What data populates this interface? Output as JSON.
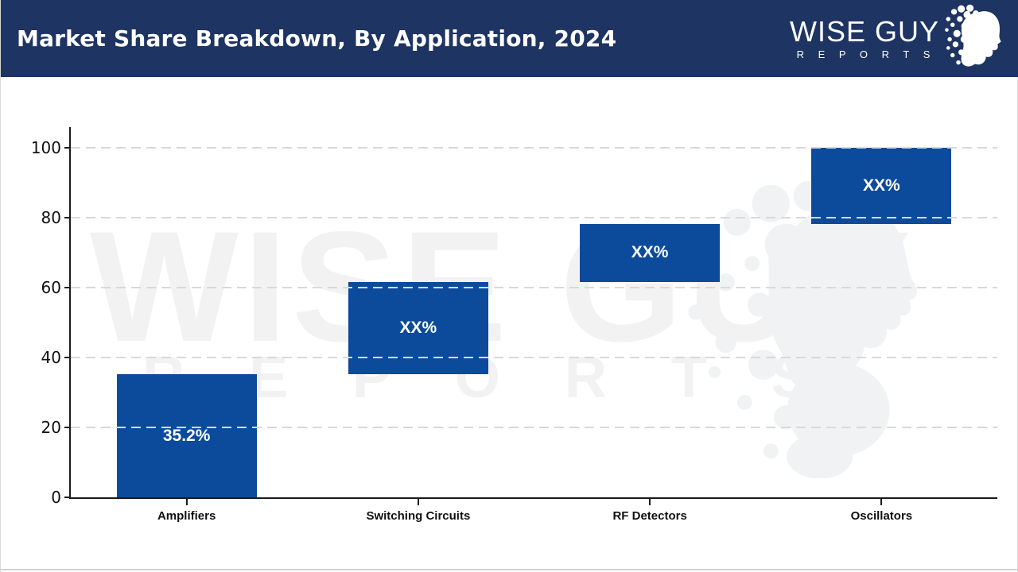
{
  "header": {
    "title": "Market Share Breakdown, By Application, 2024",
    "logo": {
      "name": "WISE GUY",
      "subtitle": "R E P O R T S",
      "head_icon": "dotted-head-profile-icon"
    }
  },
  "watermark": {
    "line1": "WISE GUY",
    "line2": "R E P O R T S",
    "head_icon": "dotted-head-profile-icon"
  },
  "colors": {
    "header_bg": "#1e3462",
    "bar": "#0c4a9c",
    "grid": "#d9d9d9",
    "axis": "#1a1a1a",
    "bar_label_text": "#ffffff",
    "watermark": "#f2f2f2"
  },
  "chart_data": {
    "type": "bar",
    "subtype": "waterfall-floating-bars",
    "title": "Market Share Breakdown, By Application, 2024",
    "categories": [
      "Amplifiers",
      "Switching Circuits",
      "RF Detectors",
      "Oscillators"
    ],
    "segments": [
      {
        "category": "Amplifiers",
        "start": 0,
        "end": 35.2,
        "label": "35.2%"
      },
      {
        "category": "Switching Circuits",
        "start": 35.2,
        "end": 61.7,
        "label": "XX%"
      },
      {
        "category": "RF Detectors",
        "start": 61.7,
        "end": 78.2,
        "label": "XX%"
      },
      {
        "category": "Oscillators",
        "start": 78.2,
        "end": 100,
        "label": "XX%"
      }
    ],
    "bar_labels": [
      "35.2%",
      "XX%",
      "XX%",
      "XX%"
    ],
    "xlabel": "",
    "ylabel": "",
    "ylim": [
      0,
      100
    ],
    "yticks": [
      0,
      20,
      40,
      60,
      80,
      100
    ],
    "grid": "horizontal-dashed",
    "legend": "none"
  }
}
